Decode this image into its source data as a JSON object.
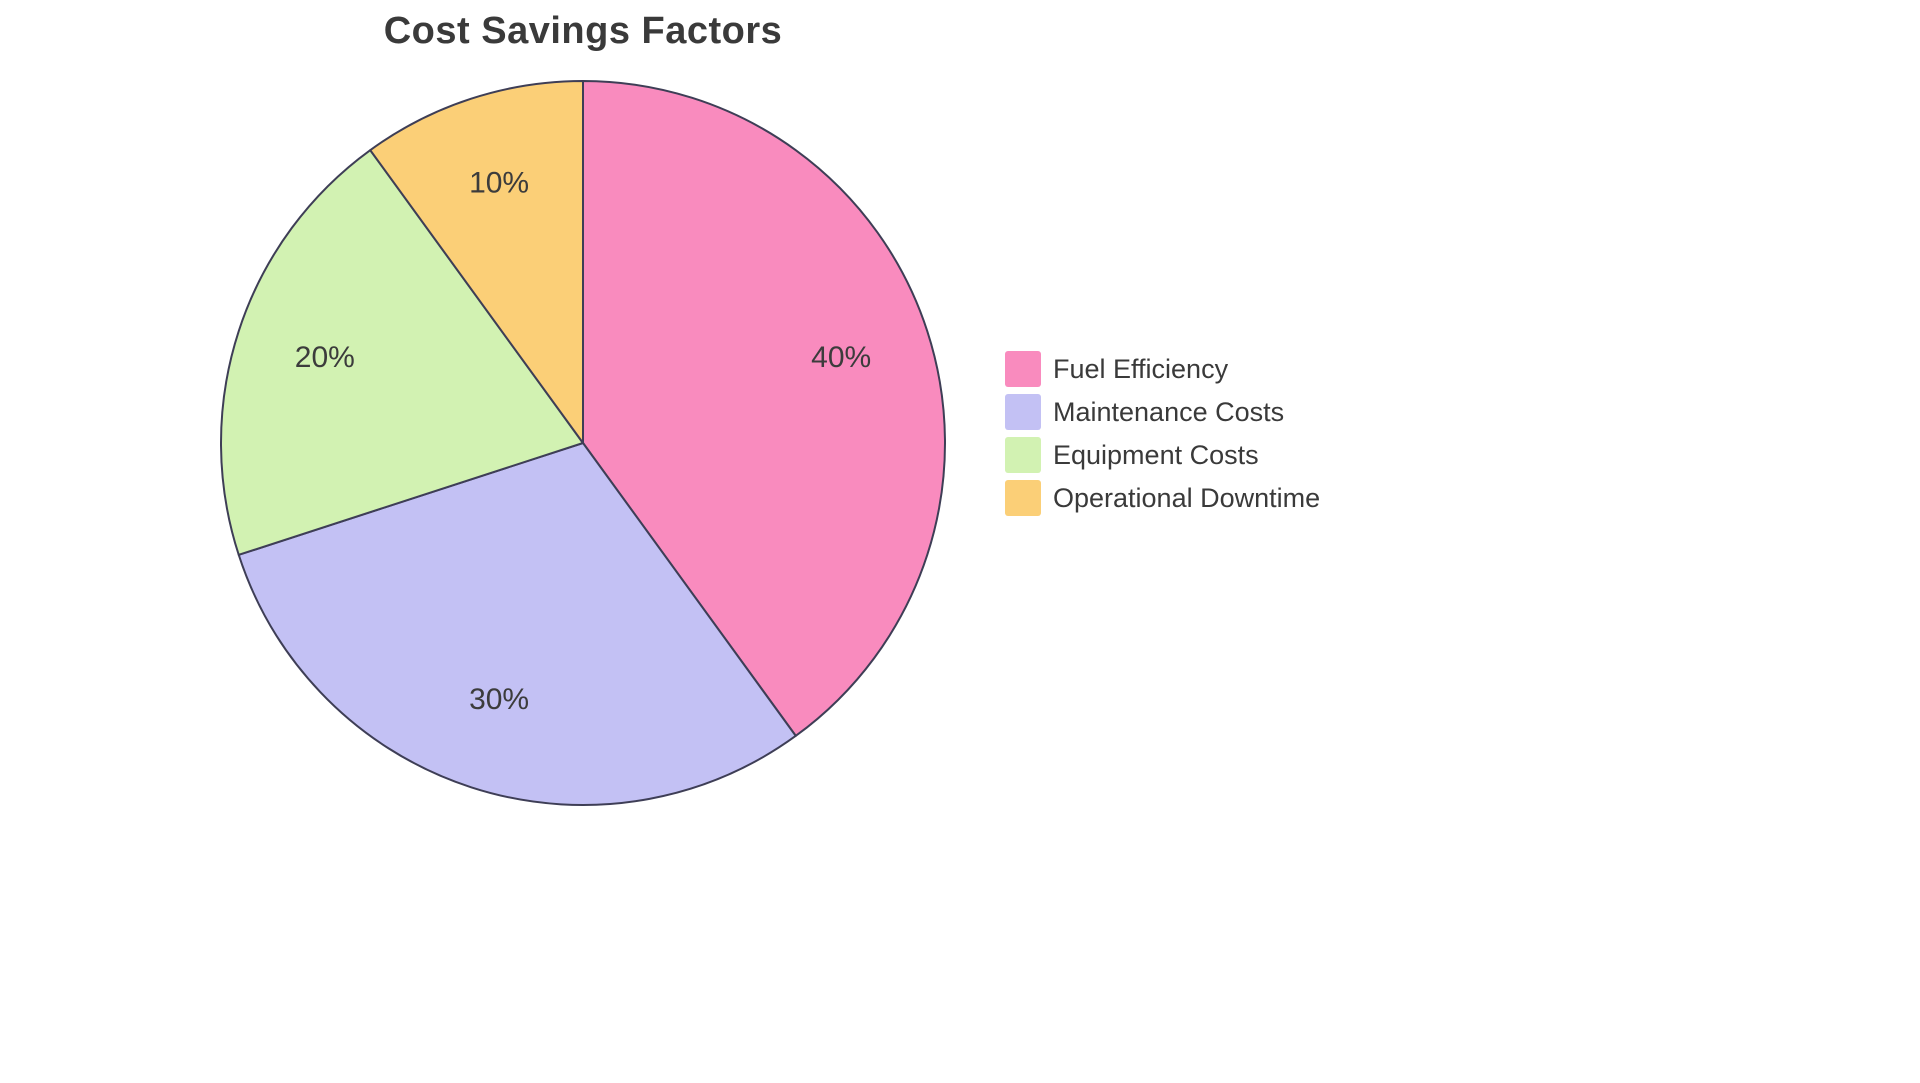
{
  "title": "Cost Savings Factors",
  "chart_data": {
    "type": "pie",
    "title": "Cost Savings Factors",
    "labels": [
      "Fuel Efficiency",
      "Maintenance Costs",
      "Equipment Costs",
      "Operational Downtime"
    ],
    "values": [
      40,
      30,
      20,
      10
    ],
    "slice_labels": [
      "40%",
      "30%",
      "20%",
      "10%"
    ],
    "colors": [
      "#F98BBE",
      "#C3C1F4",
      "#D2F2B2",
      "#FBCF77"
    ],
    "stroke_color": "#3E3E56",
    "label_color": "#3C3C3C",
    "start_angle": "top",
    "direction": "clockwise",
    "legend_position": "right"
  }
}
